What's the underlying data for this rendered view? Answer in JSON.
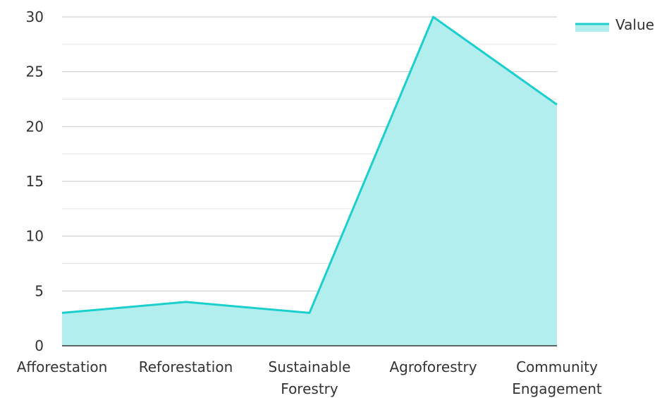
{
  "chart_data": {
    "type": "area",
    "categories": [
      "Afforestation",
      "Reforestation",
      "Sustainable\nForestry",
      "Agroforestry",
      "Community\nEngagement"
    ],
    "series": [
      {
        "name": "Value",
        "values": [
          3,
          4,
          3,
          30,
          22
        ]
      }
    ],
    "ylim": [
      0,
      30
    ],
    "yticks": [
      "0",
      "5",
      "10",
      "15",
      "20",
      "25",
      "30"
    ],
    "grid": true,
    "legend_position": "top-right",
    "colors": {
      "line": "#1ccfcc",
      "fill": "#b3eeee",
      "grid_major": "#c8c8c8",
      "grid_minor": "#e6e6e6",
      "axis": "#333333"
    }
  }
}
